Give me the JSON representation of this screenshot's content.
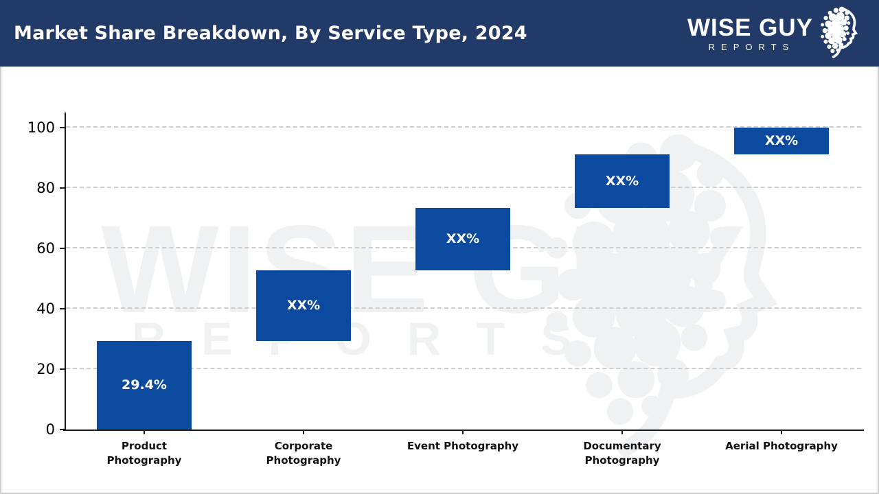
{
  "header": {
    "title": "Market Share Breakdown, By Service Type, 2024",
    "bg_color": "#223A68",
    "logo": {
      "line1": "WISE GUY",
      "line2": "REPORTS"
    }
  },
  "watermark": {
    "line1": "WISE GUY",
    "line2": "REPORTS",
    "color": "#F0F1F3"
  },
  "chart_data": {
    "type": "bar",
    "subtype": "waterfall",
    "title": "Market Share Breakdown, By Service Type, 2024",
    "categories": [
      "Product Photography",
      "Corporate Photography",
      "Event Photography",
      "Documentary Photography",
      "Aerial Photography"
    ],
    "category_lines": [
      [
        "Product",
        "Photography"
      ],
      [
        "Corporate",
        "Photography"
      ],
      [
        "Event Photography"
      ],
      [
        "Documentary",
        "Photography"
      ],
      [
        "Aerial Photography"
      ]
    ],
    "segments": [
      {
        "category": "Product Photography",
        "start": 0,
        "end": 29.4,
        "value": 29.4,
        "label": "29.4%"
      },
      {
        "category": "Corporate Photography",
        "start": 29.4,
        "end": 52.8,
        "value": 23.4,
        "label": "XX%"
      },
      {
        "category": "Event Photography",
        "start": 52.8,
        "end": 73.4,
        "value": 20.6,
        "label": "XX%"
      },
      {
        "category": "Documentary Photography",
        "start": 73.4,
        "end": 91.2,
        "value": 17.8,
        "label": "XX%"
      },
      {
        "category": "Aerial Photography",
        "start": 91.2,
        "end": 100,
        "value": 8.8,
        "label": "XX%"
      }
    ],
    "xlabel": "",
    "ylabel": "",
    "ylim": [
      0,
      100
    ],
    "yticks": [
      0,
      20,
      40,
      60,
      80,
      100
    ],
    "grid": {
      "axis": "y",
      "style": "dashed",
      "color": "#cccccc"
    },
    "legend": "none",
    "bar_color": "#0C4AA0",
    "bar_label_color": "#ffffff"
  }
}
